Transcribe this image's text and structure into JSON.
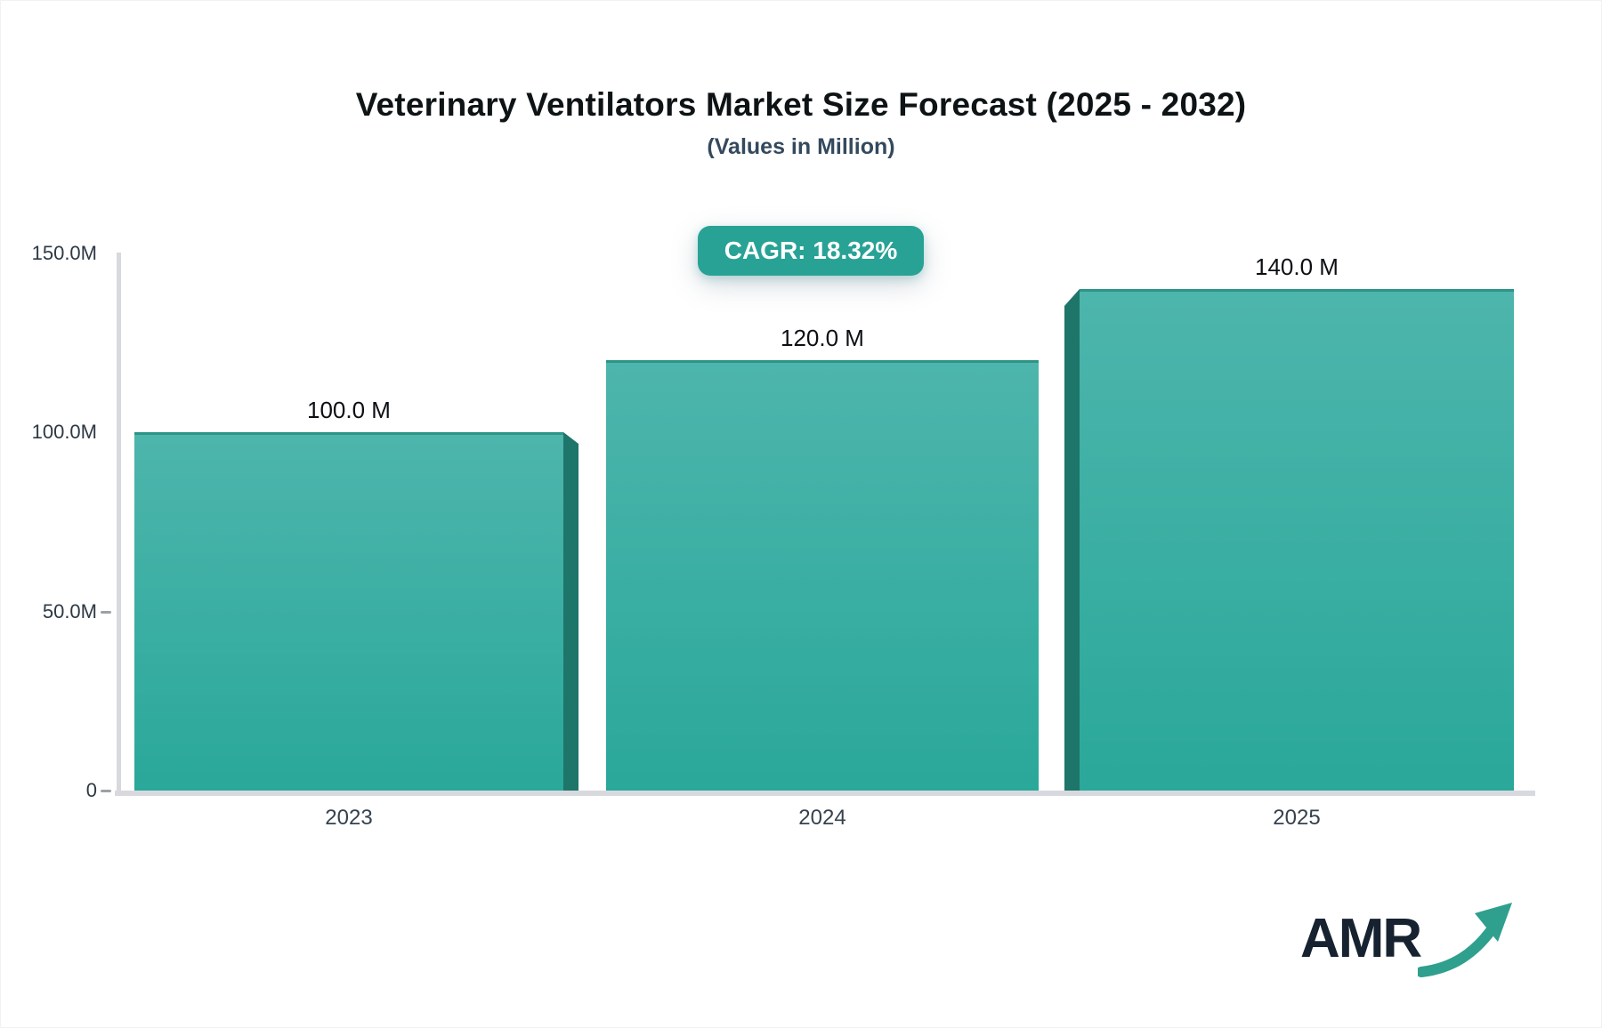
{
  "title": "Veterinary Ventilators Market Size Forecast (2025 - 2032)",
  "subtitle": "(Values in Million)",
  "cagr_badge": "CAGR: 18.32%",
  "chart_data": {
    "type": "bar",
    "title": "Veterinary Ventilators Market Size Forecast (2025 - 2032)",
    "subtitle": "(Values in Million)",
    "categories": [
      "2023",
      "2024",
      "2025"
    ],
    "values": [
      100.0,
      120.0,
      140.0
    ],
    "value_labels": [
      "100.0 M",
      "120.0 M",
      "140.0 M"
    ],
    "cagr_annotation": "CAGR: 18.32%",
    "xlabel": "",
    "ylabel": "",
    "ylim": [
      0,
      150
    ],
    "grid": false,
    "legend": false,
    "y_ticks": [
      {
        "label": "150.0M",
        "value": 150,
        "dash": false
      },
      {
        "label": "100.0M",
        "value": 100,
        "dash": false
      },
      {
        "label": "50.0M",
        "value": 50,
        "dash": true
      },
      {
        "label": "0",
        "value": 0,
        "dash": true
      }
    ]
  },
  "colors": {
    "bar_gradient_top": "#4db5ac",
    "bar_gradient_bottom": "#2aa89a",
    "bar_top_edge": "#2d9488",
    "bar_side_3d": "#1e7569",
    "badge_bg": "#29a296",
    "badge_text": "#ffffff",
    "axis_line": "#d7d9de",
    "tick_text": "#2d3944",
    "title_text": "#0e1316",
    "subtitle_text": "#34495e",
    "logo_text": "#16222f",
    "logo_arrow": "#2f9f8e"
  },
  "logo": {
    "text": "AMR"
  }
}
